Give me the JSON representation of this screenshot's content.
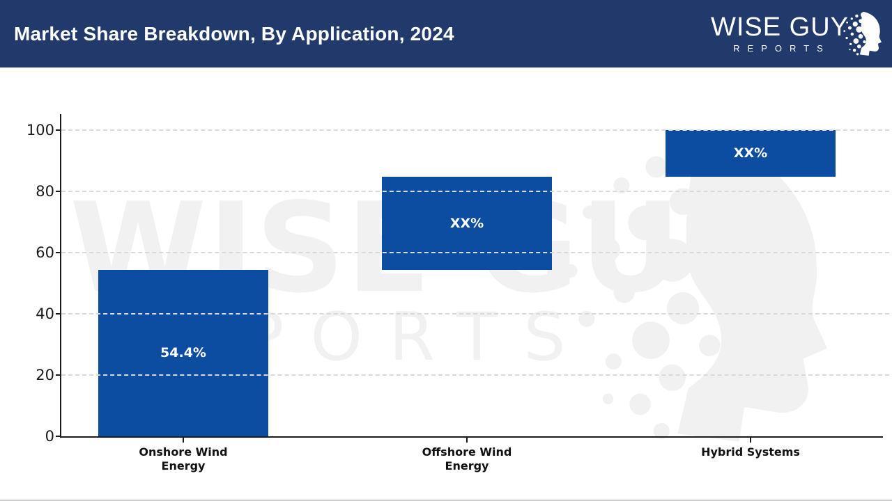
{
  "header": {
    "title": "Market Share Breakdown, By Application, 2024",
    "logo": {
      "wordmark": "WISE GUY",
      "subtext": "REPORTS"
    }
  },
  "watermark": {
    "wordmark": "WISE GUY",
    "subtext": "REPORTS"
  },
  "chart_data": {
    "type": "bar",
    "subtype": "waterfall-stacked-percentage",
    "title": "Market Share Breakdown, By Application, 2024",
    "categories": [
      "Onshore Wind Energy",
      "Offshore Wind Energy",
      "Hybrid Systems"
    ],
    "category_lines": [
      [
        "Onshore Wind",
        "Energy"
      ],
      [
        "Offshore Wind",
        "Energy"
      ],
      [
        "Hybrid Systems"
      ]
    ],
    "segments": [
      {
        "category": "Onshore Wind Energy",
        "start": 0,
        "end": 54.4,
        "label": "54.4%"
      },
      {
        "category": "Offshore Wind Energy",
        "start": 54.4,
        "end": 84.8,
        "label": "XX%"
      },
      {
        "category": "Hybrid Systems",
        "start": 84.8,
        "end": 100,
        "label": "XX%"
      }
    ],
    "values": [
      54.4,
      30.4,
      15.2
    ],
    "bar_labels": [
      "54.4%",
      "XX%",
      "XX%"
    ],
    "xlabel": "",
    "ylabel": "",
    "ylim": [
      0,
      100
    ],
    "yticks": [
      0,
      20,
      40,
      60,
      80,
      100
    ],
    "grid": "horizontal-dashed",
    "legend": "none",
    "bar_color": "#0d4da1",
    "label_color": "#ffffff",
    "axis_color": "#1a1a1a",
    "gridline_color": "#d9d9d9"
  },
  "colors": {
    "header_bg": "#213a6b",
    "page_bg": "#ffffff",
    "watermark": "#f1f1f1"
  }
}
